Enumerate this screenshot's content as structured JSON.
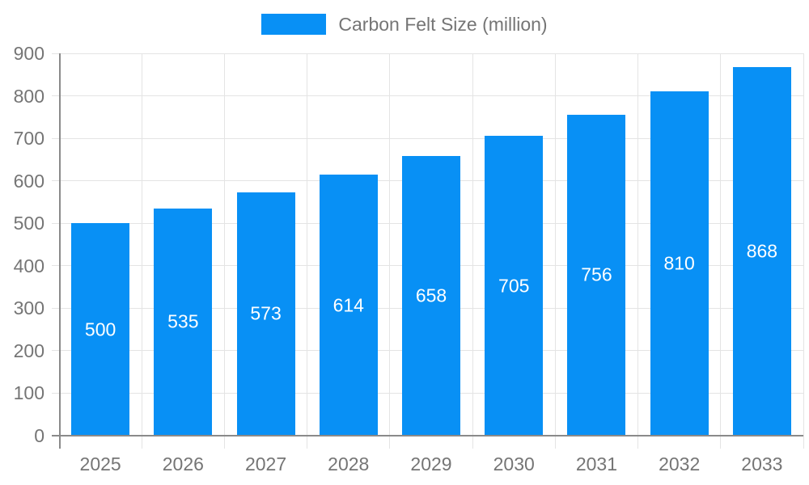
{
  "chart_data": {
    "type": "bar",
    "title": "Carbon Felt Size (million)",
    "legend": "Carbon Felt Size (million)",
    "legend_position": "top-center",
    "categories": [
      "2025",
      "2026",
      "2027",
      "2028",
      "2029",
      "2030",
      "2031",
      "2032",
      "2033"
    ],
    "values": [
      500,
      535,
      573,
      614,
      658,
      705,
      756,
      810,
      868
    ],
    "xlabel": "",
    "ylabel": "",
    "ylim": [
      0,
      900
    ],
    "y_ticks": [
      0,
      100,
      200,
      300,
      400,
      500,
      600,
      700,
      800,
      900
    ],
    "grid": "horizontal and vertical light gray",
    "value_labels": "white, centered inside bars",
    "colors": {
      "bar": "#0890F5",
      "value_label_text": "#ffffff",
      "axis_text": "#757575",
      "legend_text": "#757575",
      "gridline": "#e4e4e4",
      "axis_line": "#8a8a8a",
      "background": "#ffffff"
    }
  }
}
